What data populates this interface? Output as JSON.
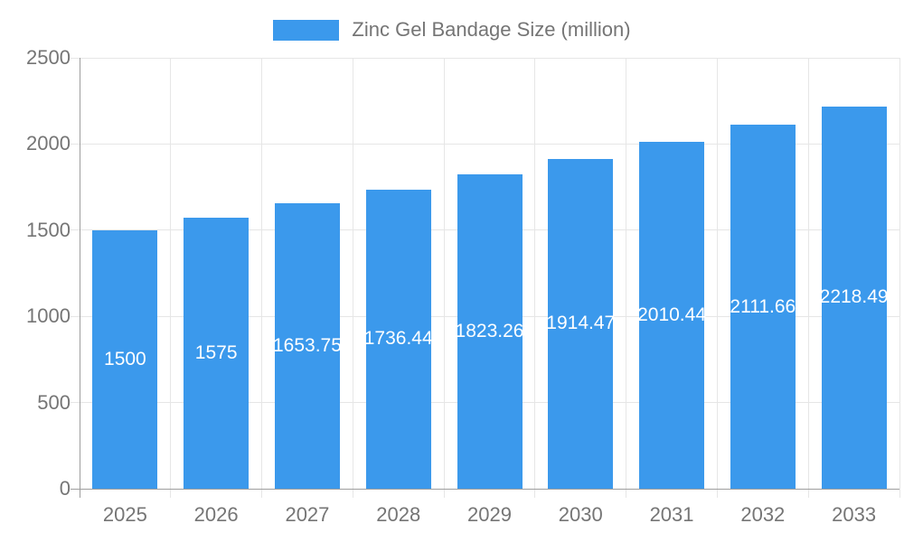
{
  "chart_data": {
    "type": "bar",
    "title": "Zinc Gel Bandage Size (million)",
    "legend_label": "Zinc Gel Bandage Size (million)",
    "legend_position": "top",
    "categories": [
      "2025",
      "2026",
      "2027",
      "2028",
      "2029",
      "2030",
      "2031",
      "2032",
      "2033"
    ],
    "series": [
      {
        "name": "Zinc Gel Bandage Size (million)",
        "values": [
          1500,
          1575,
          1653.75,
          1736.44,
          1823.26,
          1914.47,
          2010.44,
          2111.66,
          2218.49
        ]
      }
    ],
    "value_labels": [
      "1500",
      "1575",
      "1653.75",
      "1736.44",
      "1823.26",
      "1914.47",
      "2010.44",
      "2111.66",
      "2218.49"
    ],
    "xlabel": "",
    "ylabel": "",
    "ylim": [
      0,
      2500
    ],
    "yticks": [
      0,
      500,
      1000,
      1500,
      2000,
      2500
    ],
    "grid": true,
    "colors": {
      "bar": "#3B99EC",
      "bar_label_text": "#ffffff",
      "axis_text": "#757575",
      "axis_line": "#9E9E9E",
      "gridline": "#E6E6E6"
    }
  }
}
